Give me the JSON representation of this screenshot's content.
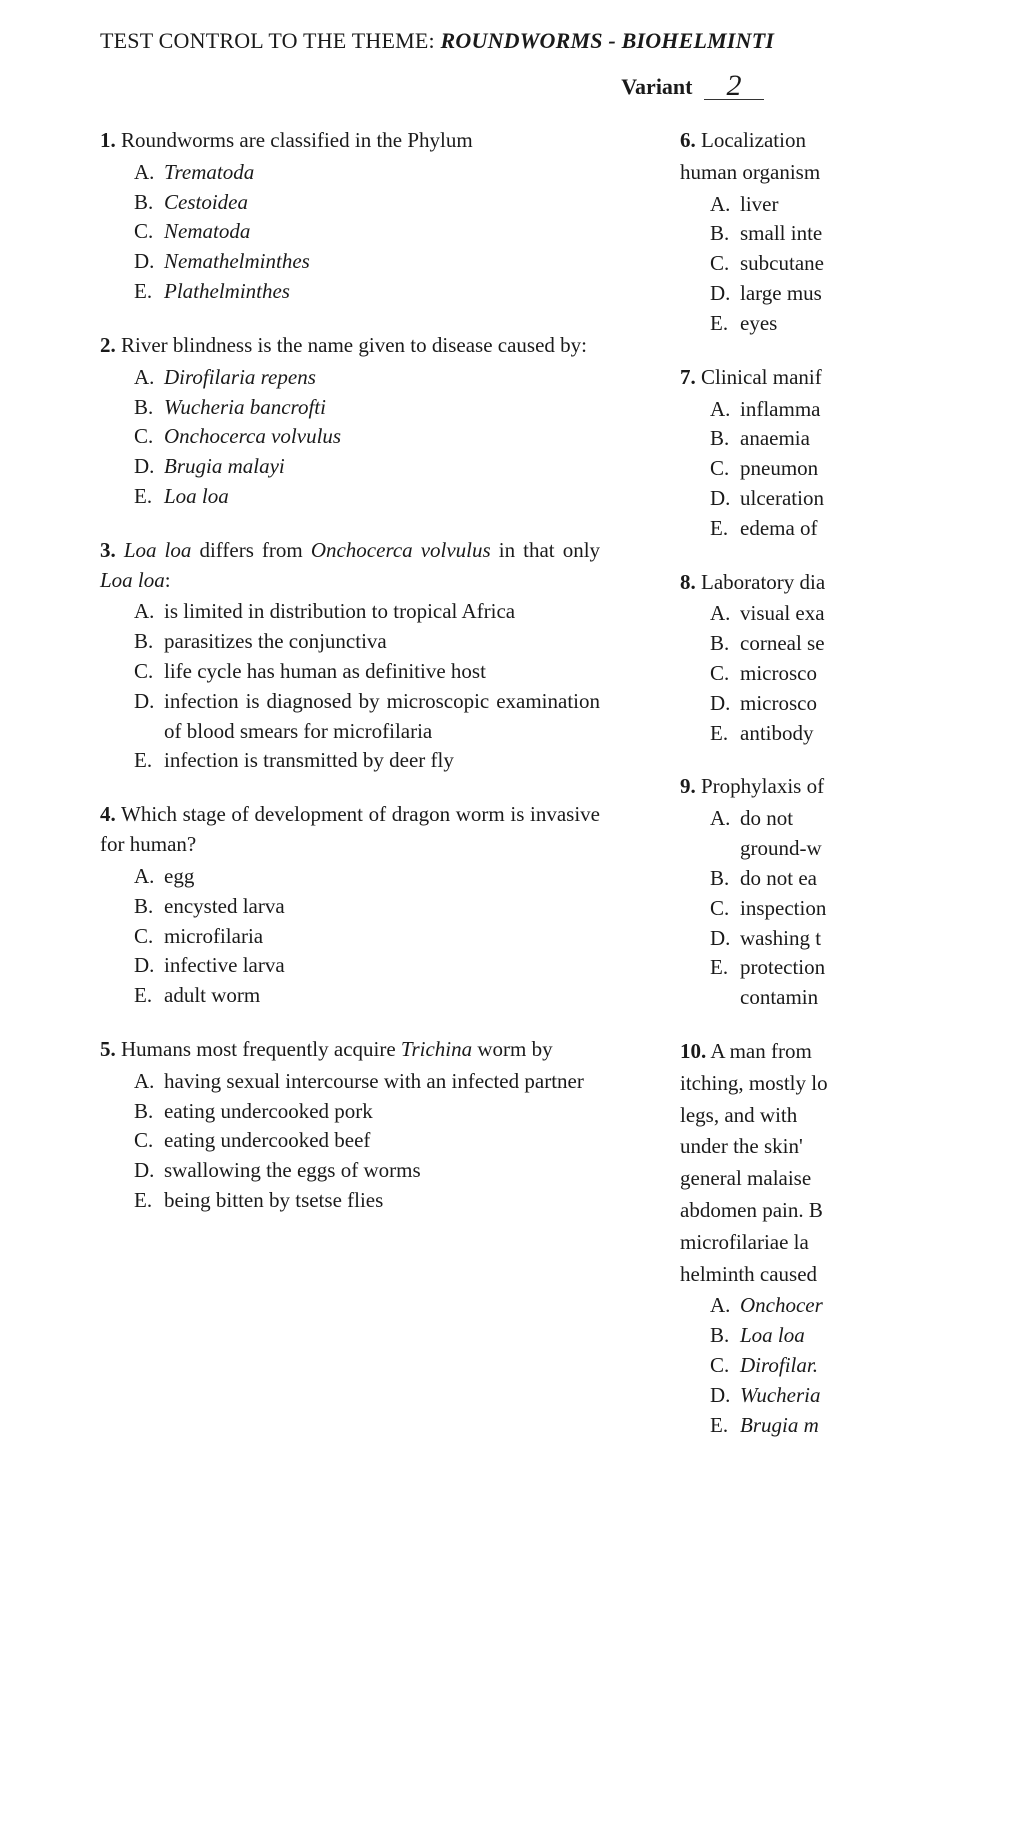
{
  "header": {
    "prefix": "TEST CONTROL TO THE THEME: ",
    "theme": "ROUNDWORMS - BIOHELMINTI"
  },
  "variant": {
    "label": "Variant",
    "value": "2"
  },
  "left": {
    "q1": {
      "num": "1.",
      "stem": " Roundworms are classified in the Phylum",
      "opts": {
        "A": "Trematoda",
        "B": "Cestoidea",
        "C": "Nematoda",
        "D": "Nemathelminthes",
        "E": "Plathelminthes"
      }
    },
    "q2": {
      "num": "2.",
      "stem": " River blindness is the name given to disease caused by:",
      "opts": {
        "A": "Dirofilaria repens",
        "B": "Wucheria bancrofti",
        "C": "Onchocerca volvulus",
        "D": "Brugia malayi",
        "E": "Loa loa"
      }
    },
    "q3": {
      "num": "3.",
      "stem_pre": " ",
      "stem_i1": "Loa loa",
      "stem_mid": " differs from ",
      "stem_i2": "Onchocerca volvulus",
      "stem_post1": " in that only ",
      "stem_i3": "Loa loa",
      "stem_post2": ":",
      "opts": {
        "A": "is limited in distribution to tropical Africa",
        "B": "parasitizes the conjunctiva",
        "C": "life cycle has human as definitive host",
        "D": "infection is diagnosed by microscopic examination of blood smears for microfilaria",
        "E": "infection is transmitted by deer fly"
      }
    },
    "q4": {
      "num": "4.",
      "stem": " Which stage of development of dragon worm is invasive for human?",
      "opts": {
        "A": "egg",
        "B": "encysted larva",
        "C": "microfilaria",
        "D": "infective larva",
        "E": "adult worm"
      }
    },
    "q5": {
      "num": "5.",
      "stem_pre": " Humans most frequently acquire ",
      "stem_i": "Trichina",
      "stem_post": " worm by",
      "opts": {
        "A": "having sexual intercourse with an infected partner",
        "B": "eating undercooked pork",
        "C": "eating undercooked beef",
        "D": "swallowing the eggs of worms",
        "E": "being bitten by tsetse flies"
      }
    }
  },
  "right": {
    "q6": {
      "num": "6.",
      "stem1": "  Localization",
      "stem2": "human organism",
      "opts": {
        "A": "liver",
        "B": "small inte",
        "C": "subcutane",
        "D": "large mus",
        "E": "eyes"
      }
    },
    "q7": {
      "num": "7.",
      "stem": " Clinical manif",
      "opts": {
        "A": "inflamma",
        "B": "anaemia",
        "C": "pneumon",
        "D": "ulceration",
        "E": "edema of"
      }
    },
    "q8": {
      "num": "8.",
      "stem": " Laboratory dia",
      "opts": {
        "A": "visual exa",
        "B": "corneal se",
        "C": "microsco",
        "D": "microsco",
        "E": "antibody"
      }
    },
    "q9": {
      "num": "9.",
      "stem": " Prophylaxis of",
      "opts": {
        "A": "do not ",
        "A2": "ground-w",
        "B": "do not ea",
        "C": "inspection",
        "D": "washing t",
        "E": "protection",
        "E2": "contamin"
      }
    },
    "q10": {
      "num": "10.",
      "stem": " A man from",
      "p1": "itching, mostly lo",
      "p2": "legs, and with",
      "p3": "under the skin'",
      "p4": "general malaise",
      "p5": "abdomen pain. B",
      "p6": "microfilariae la",
      "p7": "helminth caused",
      "opts": {
        "A": "Onchocer",
        "B": "Loa loa",
        "C": "Dirofilar.",
        "D": "Wucheria",
        "E": "Brugia m"
      }
    }
  }
}
